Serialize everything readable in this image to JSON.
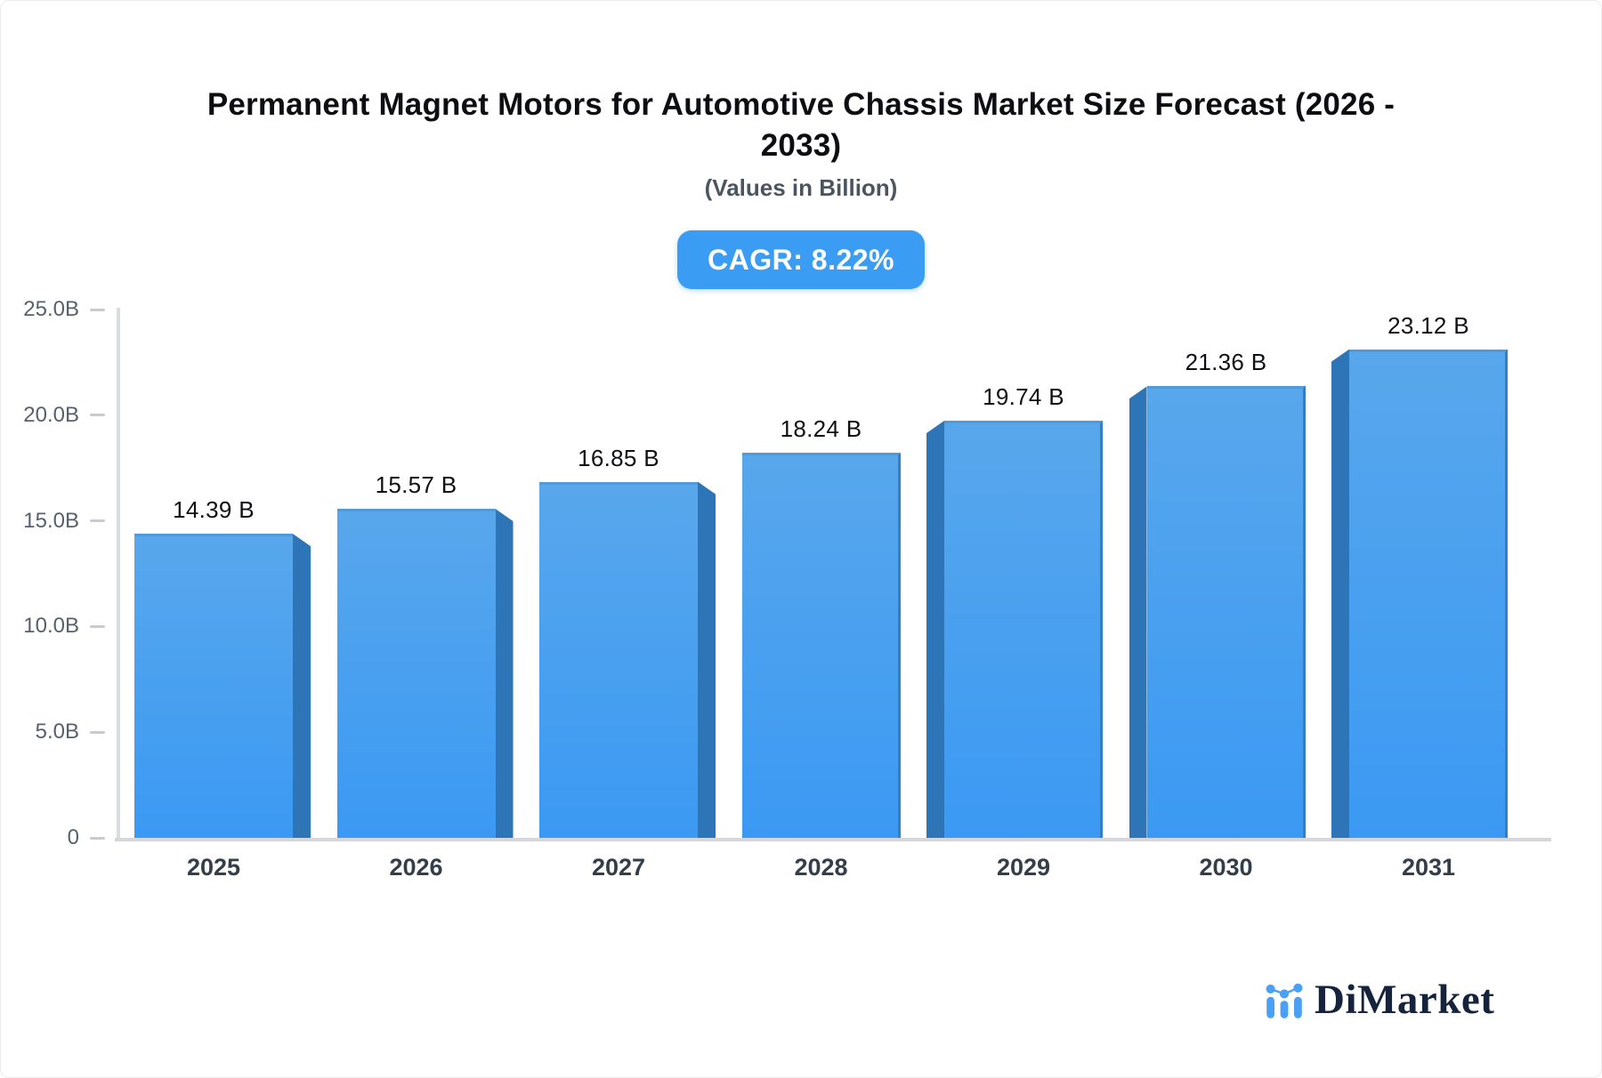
{
  "header": {
    "title_line1": "Permanent Magnet Motors for Automotive Chassis Market Size Forecast (2026 -",
    "title_line2": "2033)",
    "subtitle": "(Values in Billion)",
    "cagr_label": "CAGR: 8.22%"
  },
  "footer": {
    "brand": "DiMarket",
    "logo_icon": "bar-chart-trend-icon"
  },
  "colors": {
    "bar_face_top": "#58a7ec",
    "bar_face_bottom": "#3b99f3",
    "bar_face_edge": "#4f9ada",
    "bar_face_right_edge": "#3180c6",
    "bar_side": "#2d75b7",
    "badge_bg": "#3b9cf3",
    "axis_line": "#d9dce1",
    "baseline": "#d3d7dc",
    "tick": "#c7cbd1",
    "y_label": "#57606d",
    "x_label": "#333e4a",
    "value_label": "#0e1013",
    "title": "#0c0e12",
    "subtitle": "#4a5560",
    "logo_text": "#16233c",
    "logo_blue": "#4aa0f5"
  },
  "chart_data": {
    "type": "bar",
    "title": "Permanent Magnet Motors for Automotive Chassis Market Size Forecast (2026 - 2033)",
    "subtitle": "(Values in Billion)",
    "annotation": "CAGR: 8.22%",
    "categories": [
      "2025",
      "2026",
      "2027",
      "2028",
      "2029",
      "2030",
      "2031"
    ],
    "values": [
      14.39,
      15.57,
      16.85,
      18.24,
      19.74,
      21.36,
      23.12
    ],
    "value_labels": [
      "14.39 B",
      "15.57 B",
      "16.85 B",
      "18.24 B",
      "19.74 B",
      "21.36 B",
      "23.12 B"
    ],
    "ylim": [
      0,
      25
    ],
    "y_ticks": [
      {
        "value": 25,
        "label": "25.0B"
      },
      {
        "value": 20,
        "label": "20.0B"
      },
      {
        "value": 15,
        "label": "15.0B"
      },
      {
        "value": 10,
        "label": "10.0B"
      },
      {
        "value": 5,
        "label": "5.0B"
      },
      {
        "value": 0,
        "label": "0"
      }
    ],
    "grid": false,
    "legend": false,
    "bar_style": "3d-center-perspective"
  }
}
